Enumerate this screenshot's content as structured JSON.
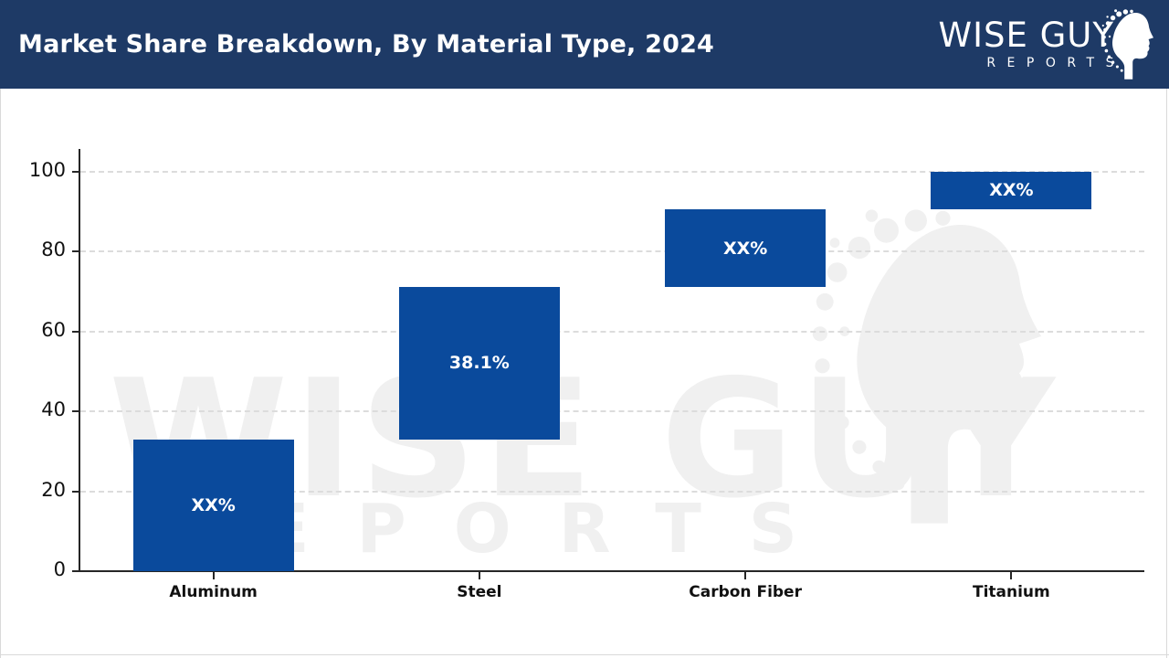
{
  "header": {
    "title": "Market Share Breakdown, By Material Type, 2024",
    "logo_main": "WISE GUY",
    "logo_sub": "REPORTS"
  },
  "watermark": {
    "line1": "WISE GUY",
    "line2": "REPORTS"
  },
  "colors": {
    "header_bg": "#1e3a66",
    "bar": "#0a4a9c",
    "bar_label": "#ffffff",
    "axis": "#262626",
    "grid": "#dcdcdc",
    "watermark": "#f0f0f0"
  },
  "chart_data": {
    "type": "bar",
    "subtype": "floating-segment waterfall (market share)",
    "title": "Market Share Breakdown, By Material Type, 2024",
    "categories": [
      "Aluminum",
      "Steel",
      "Carbon Fiber",
      "Titanium"
    ],
    "segments": [
      {
        "category": "Aluminum",
        "start": 0,
        "end": 33,
        "label": "XX%"
      },
      {
        "category": "Steel",
        "start": 33,
        "end": 71.1,
        "label": "38.1%"
      },
      {
        "category": "Carbon Fiber",
        "start": 71.1,
        "end": 90.5,
        "label": "XX%"
      },
      {
        "category": "Titanium",
        "start": 90.5,
        "end": 100,
        "label": "XX%"
      }
    ],
    "ylim": [
      0,
      100
    ],
    "yticks": [
      0,
      20,
      40,
      60,
      80,
      100
    ],
    "xlabel": "",
    "ylabel": "",
    "grid": "horizontal dashed",
    "legend": "none"
  }
}
